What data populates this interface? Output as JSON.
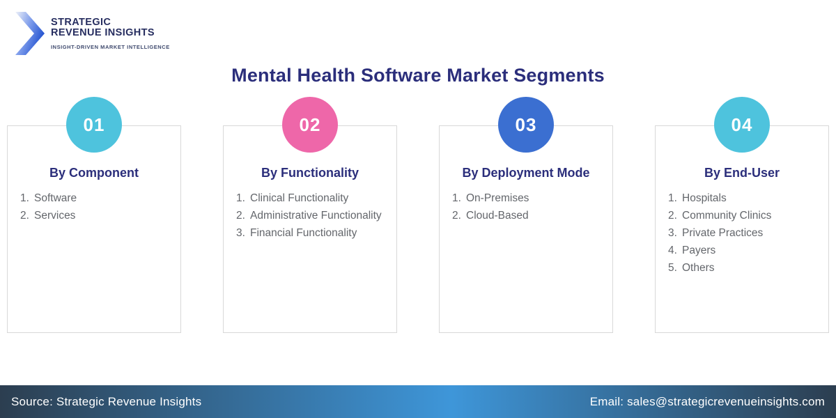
{
  "logo": {
    "mark_icon": "chevron-right-icon",
    "line1": "STRATEGIC",
    "line2": "REVENUE INSIGHTS",
    "tagline": "INSIGHT-DRIVEN MARKET INTELLIGENCE"
  },
  "title": "Mental Health Software Market Segments",
  "colors": {
    "title_navy": "#2b2e7b",
    "heading_navy": "#2b2e7b",
    "list_gray": "#63666b",
    "box_border": "#d8d8d8",
    "badge_cyan": "#4ec3dd",
    "badge_pink": "#ee67a9",
    "badge_blue": "#3b6fd1",
    "footer_dark": "#2c3e50",
    "footer_light": "#3e96d9",
    "badge_text": "#ffffff"
  },
  "segments": [
    {
      "number": "01",
      "badge_color": "#4ec3dd",
      "heading": "By Component",
      "items": [
        "Software",
        "Services"
      ]
    },
    {
      "number": "02",
      "badge_color": "#ee67a9",
      "heading": "By Functionality",
      "items": [
        "Clinical Functionality",
        "Administrative Functionality",
        "Financial Functionality"
      ]
    },
    {
      "number": "03",
      "badge_color": "#3b6fd1",
      "heading": "By Deployment Mode",
      "items": [
        "On-Premises",
        "Cloud-Based"
      ]
    },
    {
      "number": "04",
      "badge_color": "#4ec3dd",
      "heading": "By End-User",
      "items": [
        "Hospitals",
        "Community Clinics",
        "Private Practices",
        "Payers",
        "Others"
      ]
    }
  ],
  "footer": {
    "source": "Source: Strategic Revenue Insights",
    "email": "Email: sales@strategicrevenueinsights.com"
  }
}
